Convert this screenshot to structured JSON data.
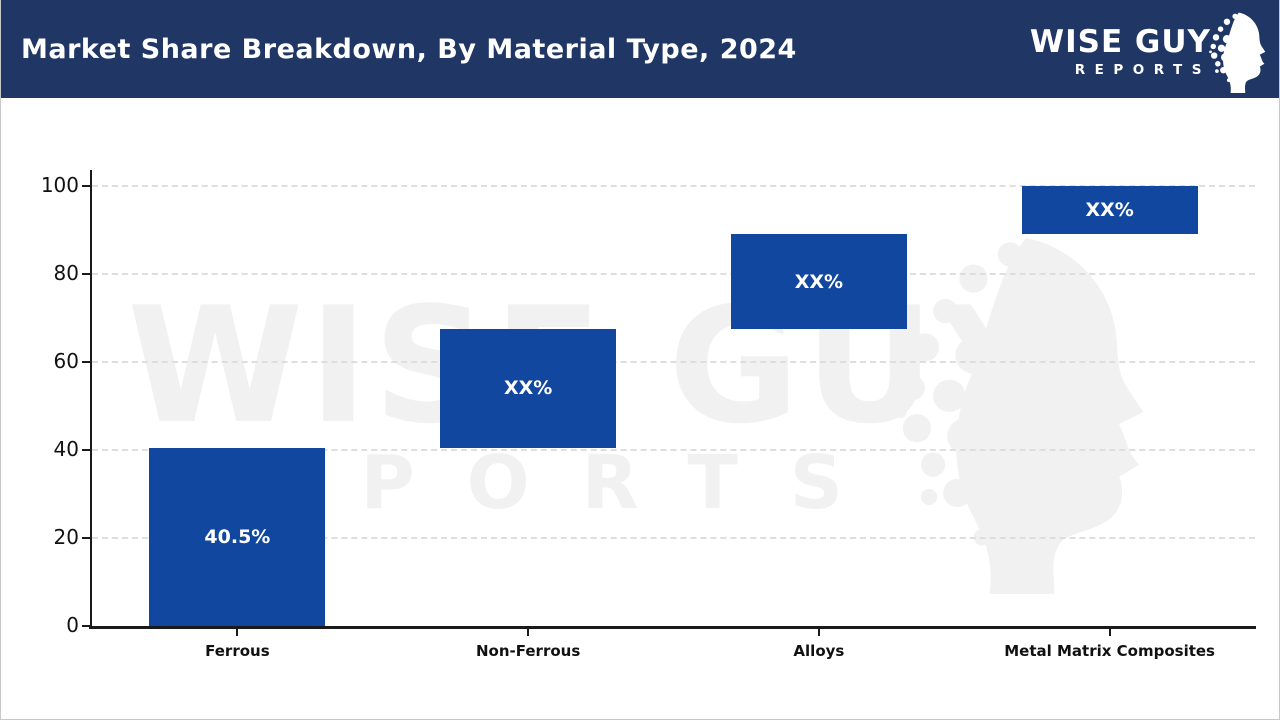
{
  "header": {
    "title": "Market Share Breakdown, By Material Type, 2024",
    "bg_color": "#203765",
    "logo": {
      "wordmark": "WISE GUY",
      "subtext": "REPORTS"
    }
  },
  "watermark": {
    "wordmark": "WISE GUY",
    "subtext": "REPORTS"
  },
  "chart_data": {
    "type": "waterfall",
    "title": "Market Share Breakdown, By Material Type, 2024",
    "categories": [
      "Ferrous",
      "Non-Ferrous",
      "Alloys",
      "Metal Matrix Composites"
    ],
    "segments": [
      {
        "category": "Ferrous",
        "start": 0,
        "end": 40.5,
        "label": "40.5%"
      },
      {
        "category": "Non-Ferrous",
        "start": 40.5,
        "end": 67.5,
        "label": "XX%"
      },
      {
        "category": "Alloys",
        "start": 67.5,
        "end": 89,
        "label": "XX%"
      },
      {
        "category": "Metal Matrix Composites",
        "start": 89,
        "end": 100,
        "label": "XX%"
      }
    ],
    "ylim": [
      0,
      100
    ],
    "yticks": [
      0,
      20,
      40,
      60,
      80,
      100
    ],
    "grid": {
      "axis": "y",
      "style": "dashed",
      "color": "#DEDEDE"
    },
    "legend": "none",
    "bar_color": "#11479E",
    "bar_label_color": "#FFFFFF",
    "axis_color": "#1A1A1A"
  }
}
